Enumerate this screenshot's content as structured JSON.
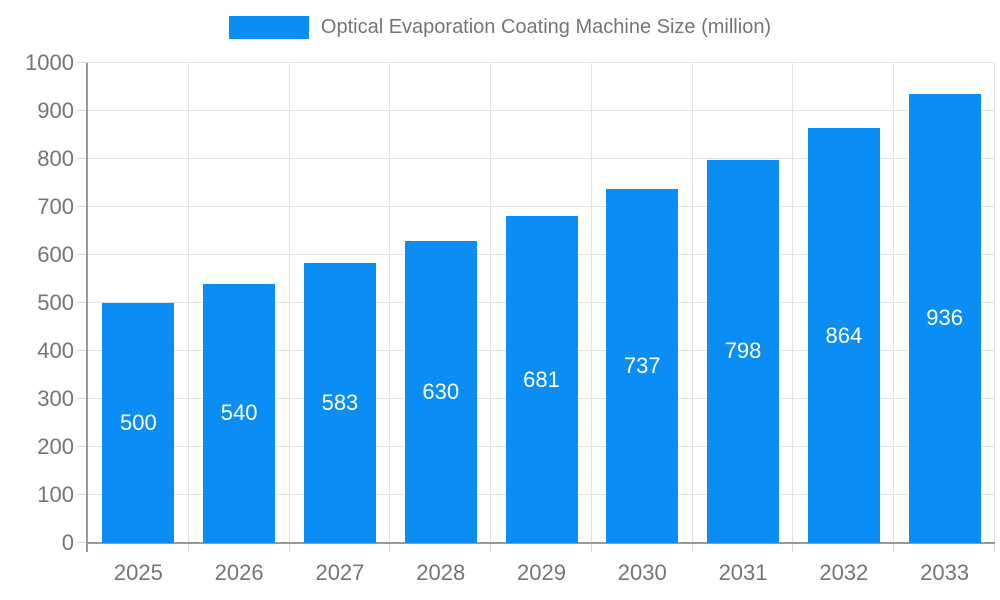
{
  "legend": {
    "label": "Optical Evaporation Coating Machine Size (million)"
  },
  "chart_data": {
    "type": "bar",
    "title": "Optical Evaporation Coating Machine Size (million)",
    "categories": [
      "2025",
      "2026",
      "2027",
      "2028",
      "2029",
      "2030",
      "2031",
      "2032",
      "2033"
    ],
    "values": [
      500,
      540,
      583,
      630,
      681,
      737,
      798,
      864,
      936
    ],
    "xlabel": "",
    "ylabel": "",
    "ylim": [
      0,
      1000
    ],
    "ytick_interval": 100,
    "ytick_labels": [
      "0",
      "100",
      "200",
      "300",
      "400",
      "500",
      "600",
      "700",
      "800",
      "900",
      "1000"
    ],
    "grid": true,
    "legend_position": "top",
    "value_labels_position": "center-inside",
    "colors": {
      "bar": "#0a8df5",
      "value_label": "#ffffff",
      "axis_line": "#999999",
      "gridline": "#e3e3e3",
      "tick": "#d9d9d9",
      "axis_text": "#757575",
      "legend_text": "#757575",
      "background": "#ffffff"
    }
  }
}
